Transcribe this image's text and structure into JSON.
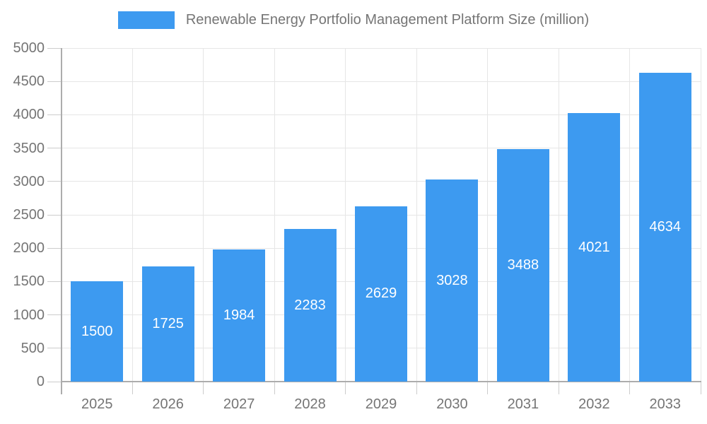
{
  "legend": {
    "label": "Renewable Energy Portfolio Management Platform Size (million)"
  },
  "chart_data": {
    "type": "bar",
    "title": "Renewable Energy Portfolio Management Platform Size (million)",
    "categories": [
      "2025",
      "2026",
      "2027",
      "2028",
      "2029",
      "2030",
      "2031",
      "2032",
      "2033"
    ],
    "values": [
      1500,
      1725,
      1984,
      2283,
      2629,
      3028,
      3488,
      4021,
      4634
    ],
    "xlabel": "",
    "ylabel": "",
    "ylim": [
      0,
      5000
    ],
    "ytick_step": 500,
    "yticks": [
      0,
      500,
      1000,
      1500,
      2000,
      2500,
      3000,
      3500,
      4000,
      4500,
      5000
    ],
    "grid": true,
    "value_labels": "inside-center",
    "legend_position": "top-center",
    "colors": {
      "bar": "#3D9AF0",
      "grid": "#E6E6E6",
      "axis": "#ADADAD",
      "tick": "#CCCCCC",
      "text": "#757575",
      "value_label": "#FFFFFF",
      "background": "#FFFFFF"
    }
  }
}
